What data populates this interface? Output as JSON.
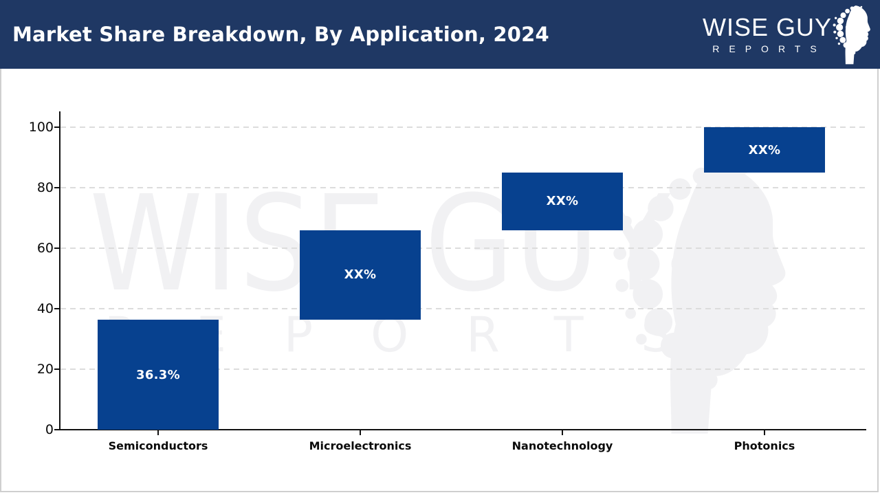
{
  "header": {
    "title": "Market Share Breakdown, By Application, 2024"
  },
  "logo": {
    "wordmark": "WISE GUY",
    "subtext": "REPORTS",
    "head_icon": "dotted-head-profile"
  },
  "watermark": {
    "big_text": "WISE GUY",
    "small_text": "REPORTS"
  },
  "theme": {
    "header_bg": "#1f3864",
    "bar_color": "#07418f",
    "grid_color": "#dcdcdc",
    "axis_color": "#111111",
    "watermark_color": "#f1f1f3",
    "frame_color": "#cfcfcf",
    "title_color": "#ffffff",
    "bar_label_color": "#ffffff"
  },
  "chart_data": {
    "type": "bar",
    "subtype": "floating-segment-waterfall",
    "title": "Market Share Breakdown, By Application, 2024",
    "xlabel": "",
    "ylabel": "",
    "ylim": [
      0,
      100
    ],
    "yticks": [
      0,
      20,
      40,
      60,
      80,
      100
    ],
    "grid": "horizontal-dashed",
    "legend": "none",
    "categories": [
      "Semiconductors",
      "Microelectronics",
      "Nanotechnology",
      "Photonics"
    ],
    "segments": [
      {
        "category": "Semiconductors",
        "start": 0,
        "end": 36.3,
        "label": "36.3%"
      },
      {
        "category": "Microelectronics",
        "start": 36.3,
        "end": 66.0,
        "label": "XX%"
      },
      {
        "category": "Nanotechnology",
        "start": 66.0,
        "end": 85.0,
        "label": "XX%"
      },
      {
        "category": "Photonics",
        "start": 85.0,
        "end": 100.0,
        "label": "XX%"
      }
    ]
  }
}
